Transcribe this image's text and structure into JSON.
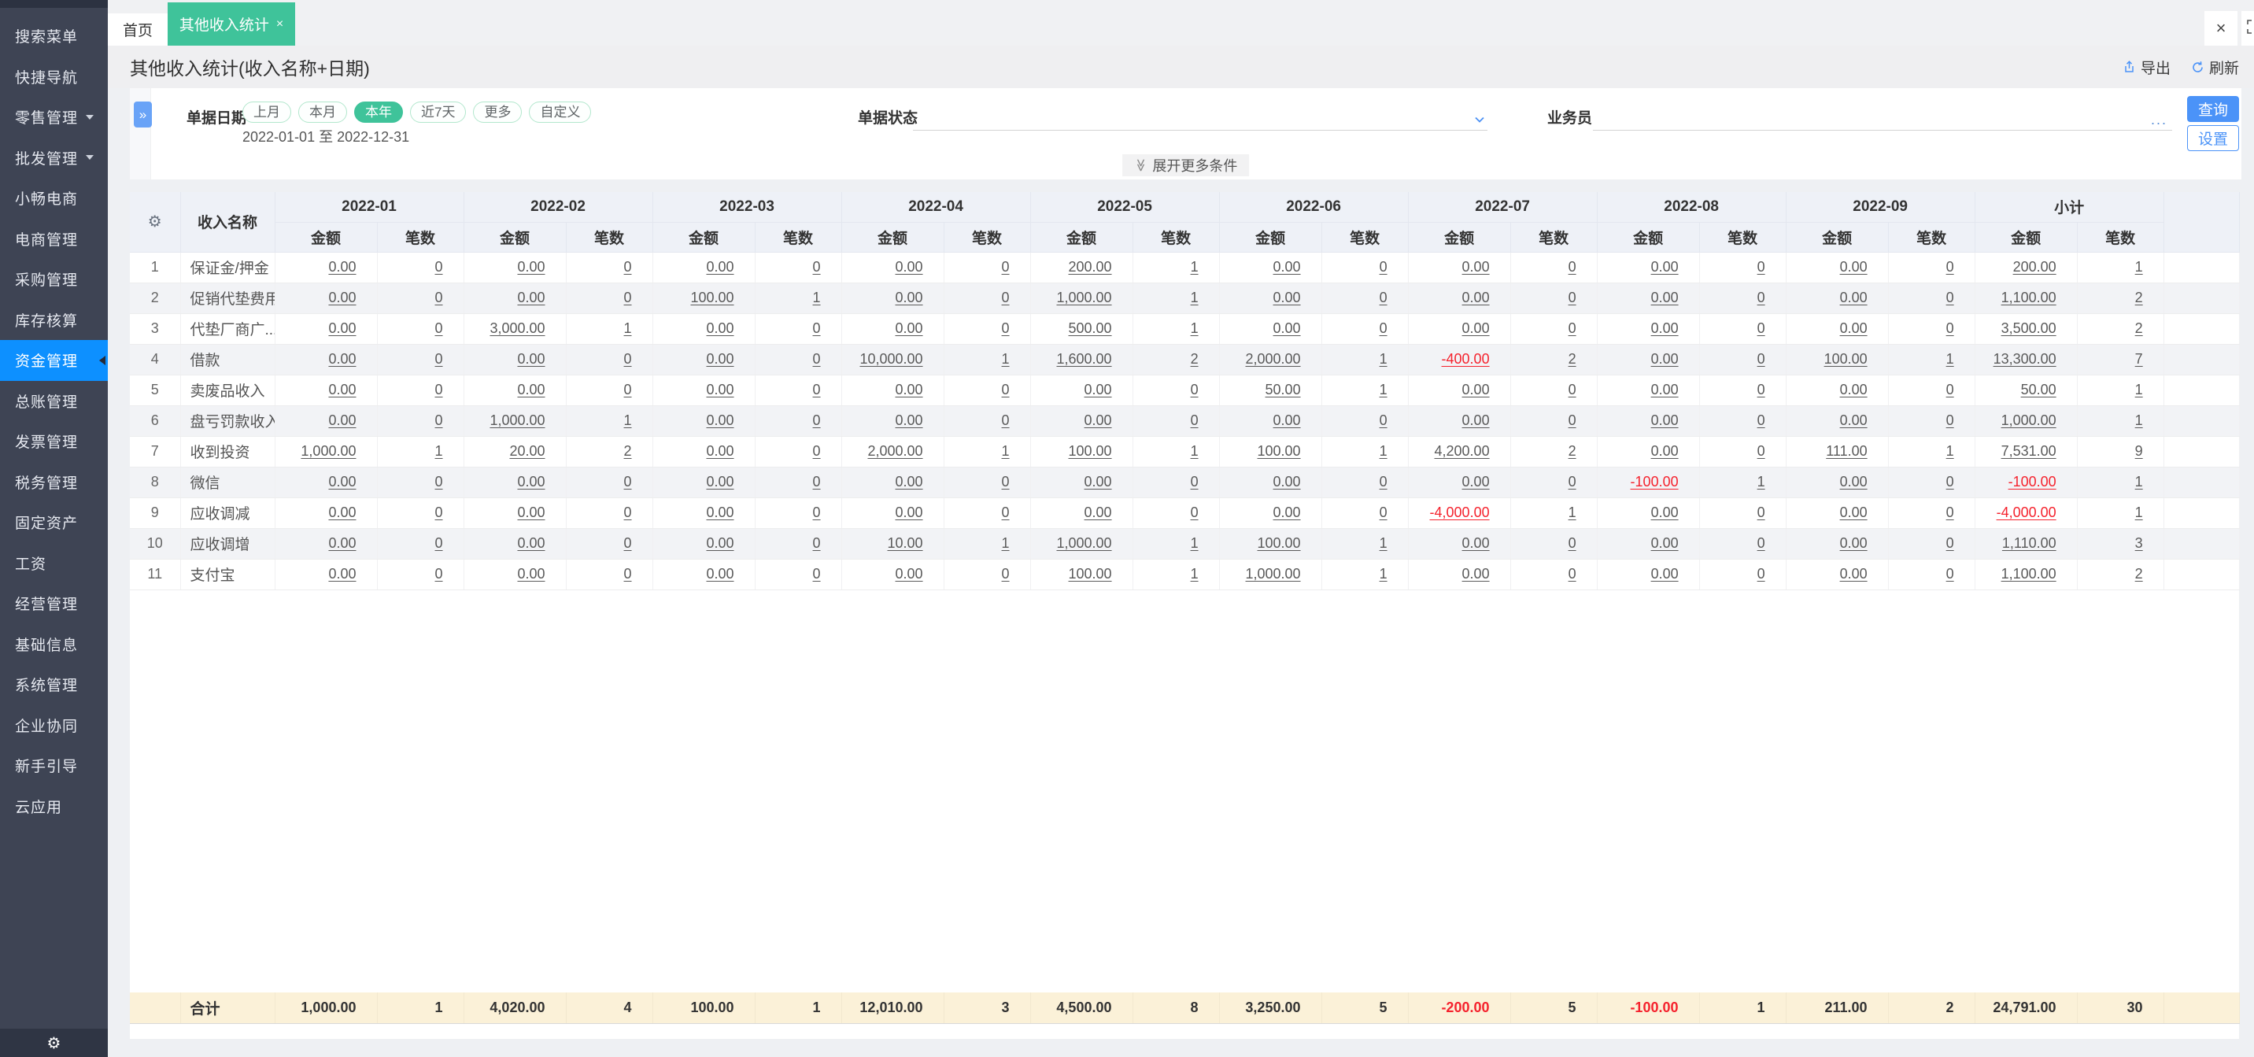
{
  "sidebar": {
    "items": [
      {
        "label": "搜索菜单"
      },
      {
        "label": "快捷导航"
      },
      {
        "label": "零售管理",
        "arrow": true
      },
      {
        "label": "批发管理",
        "arrow": true
      },
      {
        "label": "小畅电商"
      },
      {
        "label": "电商管理"
      },
      {
        "label": "采购管理"
      },
      {
        "label": "库存核算"
      },
      {
        "label": "资金管理",
        "selected": true
      },
      {
        "label": "总账管理"
      },
      {
        "label": "发票管理"
      },
      {
        "label": "税务管理"
      },
      {
        "label": "固定资产"
      },
      {
        "label": "工资"
      },
      {
        "label": "经营管理"
      },
      {
        "label": "基础信息"
      },
      {
        "label": "系统管理"
      },
      {
        "label": "企业协同"
      },
      {
        "label": "新手引导"
      },
      {
        "label": "云应用"
      }
    ],
    "footer_icon": "gear"
  },
  "tabs": {
    "home": "首页",
    "active": "其他收入统计",
    "active_close": "×",
    "window_close": "×"
  },
  "page": {
    "title": "其他收入统计(收入名称+日期)",
    "export_label": "导出",
    "refresh_label": "刷新"
  },
  "filters": {
    "date_label": "单据日期",
    "date_chips": [
      "上月",
      "本月",
      "本年",
      "近7天",
      "更多",
      "自定义"
    ],
    "date_chip_selected": "本年",
    "date_range": "2022-01-01 至 2022-12-31",
    "status_label": "单据状态",
    "salesman_label": "业务员",
    "salesman_ellipsis": "...",
    "expand_more": "展开更多条件",
    "expand_more_icon": "≫",
    "query_label": "查询",
    "settings_label": "设置",
    "collapse_icon": "»"
  },
  "table": {
    "name_header": "收入名称",
    "amount_header": "金额",
    "count_header": "笔数",
    "months": [
      "2022-01",
      "2022-02",
      "2022-03",
      "2022-04",
      "2022-05",
      "2022-06",
      "2022-07",
      "2022-08",
      "2022-09",
      "小计"
    ],
    "rows": [
      {
        "index": "1",
        "name": "保证金/押金",
        "cells": [
          [
            "0.00",
            "0"
          ],
          [
            "0.00",
            "0"
          ],
          [
            "0.00",
            "0"
          ],
          [
            "0.00",
            "0"
          ],
          [
            "200.00",
            "1"
          ],
          [
            "0.00",
            "0"
          ],
          [
            "0.00",
            "0"
          ],
          [
            "0.00",
            "0"
          ],
          [
            "0.00",
            "0"
          ],
          [
            "200.00",
            "1"
          ]
        ]
      },
      {
        "index": "2",
        "name": "促销代垫费用",
        "cells": [
          [
            "0.00",
            "0"
          ],
          [
            "0.00",
            "0"
          ],
          [
            "100.00",
            "1"
          ],
          [
            "0.00",
            "0"
          ],
          [
            "1,000.00",
            "1"
          ],
          [
            "0.00",
            "0"
          ],
          [
            "0.00",
            "0"
          ],
          [
            "0.00",
            "0"
          ],
          [
            "0.00",
            "0"
          ],
          [
            "1,100.00",
            "2"
          ]
        ]
      },
      {
        "index": "3",
        "name": "代垫厂商广...",
        "cells": [
          [
            "0.00",
            "0"
          ],
          [
            "3,000.00",
            "1"
          ],
          [
            "0.00",
            "0"
          ],
          [
            "0.00",
            "0"
          ],
          [
            "500.00",
            "1"
          ],
          [
            "0.00",
            "0"
          ],
          [
            "0.00",
            "0"
          ],
          [
            "0.00",
            "0"
          ],
          [
            "0.00",
            "0"
          ],
          [
            "3,500.00",
            "2"
          ]
        ]
      },
      {
        "index": "4",
        "name": "借款",
        "cells": [
          [
            "0.00",
            "0"
          ],
          [
            "0.00",
            "0"
          ],
          [
            "0.00",
            "0"
          ],
          [
            "10,000.00",
            "1"
          ],
          [
            "1,600.00",
            "2"
          ],
          [
            "2,000.00",
            "1"
          ],
          [
            "-400.00",
            "2"
          ],
          [
            "0.00",
            "0"
          ],
          [
            "100.00",
            "1"
          ],
          [
            "13,300.00",
            "7"
          ]
        ]
      },
      {
        "index": "5",
        "name": "卖废品收入",
        "cells": [
          [
            "0.00",
            "0"
          ],
          [
            "0.00",
            "0"
          ],
          [
            "0.00",
            "0"
          ],
          [
            "0.00",
            "0"
          ],
          [
            "0.00",
            "0"
          ],
          [
            "50.00",
            "1"
          ],
          [
            "0.00",
            "0"
          ],
          [
            "0.00",
            "0"
          ],
          [
            "0.00",
            "0"
          ],
          [
            "50.00",
            "1"
          ]
        ]
      },
      {
        "index": "6",
        "name": "盘亏罚款收入",
        "cells": [
          [
            "0.00",
            "0"
          ],
          [
            "1,000.00",
            "1"
          ],
          [
            "0.00",
            "0"
          ],
          [
            "0.00",
            "0"
          ],
          [
            "0.00",
            "0"
          ],
          [
            "0.00",
            "0"
          ],
          [
            "0.00",
            "0"
          ],
          [
            "0.00",
            "0"
          ],
          [
            "0.00",
            "0"
          ],
          [
            "1,000.00",
            "1"
          ]
        ]
      },
      {
        "index": "7",
        "name": "收到投资",
        "cells": [
          [
            "1,000.00",
            "1"
          ],
          [
            "20.00",
            "2"
          ],
          [
            "0.00",
            "0"
          ],
          [
            "2,000.00",
            "1"
          ],
          [
            "100.00",
            "1"
          ],
          [
            "100.00",
            "1"
          ],
          [
            "4,200.00",
            "2"
          ],
          [
            "0.00",
            "0"
          ],
          [
            "111.00",
            "1"
          ],
          [
            "7,531.00",
            "9"
          ]
        ]
      },
      {
        "index": "8",
        "name": "微信",
        "cells": [
          [
            "0.00",
            "0"
          ],
          [
            "0.00",
            "0"
          ],
          [
            "0.00",
            "0"
          ],
          [
            "0.00",
            "0"
          ],
          [
            "0.00",
            "0"
          ],
          [
            "0.00",
            "0"
          ],
          [
            "0.00",
            "0"
          ],
          [
            "-100.00",
            "1"
          ],
          [
            "0.00",
            "0"
          ],
          [
            "-100.00",
            "1"
          ]
        ]
      },
      {
        "index": "9",
        "name": "应收调减",
        "cells": [
          [
            "0.00",
            "0"
          ],
          [
            "0.00",
            "0"
          ],
          [
            "0.00",
            "0"
          ],
          [
            "0.00",
            "0"
          ],
          [
            "0.00",
            "0"
          ],
          [
            "0.00",
            "0"
          ],
          [
            "-4,000.00",
            "1"
          ],
          [
            "0.00",
            "0"
          ],
          [
            "0.00",
            "0"
          ],
          [
            "-4,000.00",
            "1"
          ]
        ]
      },
      {
        "index": "10",
        "name": "应收调增",
        "cells": [
          [
            "0.00",
            "0"
          ],
          [
            "0.00",
            "0"
          ],
          [
            "0.00",
            "0"
          ],
          [
            "10.00",
            "1"
          ],
          [
            "1,000.00",
            "1"
          ],
          [
            "100.00",
            "1"
          ],
          [
            "0.00",
            "0"
          ],
          [
            "0.00",
            "0"
          ],
          [
            "0.00",
            "0"
          ],
          [
            "1,110.00",
            "3"
          ]
        ]
      },
      {
        "index": "11",
        "name": "支付宝",
        "cells": [
          [
            "0.00",
            "0"
          ],
          [
            "0.00",
            "0"
          ],
          [
            "0.00",
            "0"
          ],
          [
            "0.00",
            "0"
          ],
          [
            "100.00",
            "1"
          ],
          [
            "1,000.00",
            "1"
          ],
          [
            "0.00",
            "0"
          ],
          [
            "0.00",
            "0"
          ],
          [
            "0.00",
            "0"
          ],
          [
            "1,100.00",
            "2"
          ]
        ]
      }
    ],
    "total_label": "合计",
    "totals": [
      [
        "1,000.00",
        "1"
      ],
      [
        "4,020.00",
        "4"
      ],
      [
        "100.00",
        "1"
      ],
      [
        "12,010.00",
        "3"
      ],
      [
        "4,500.00",
        "8"
      ],
      [
        "3,250.00",
        "5"
      ],
      [
        "-200.00",
        "5"
      ],
      [
        "-100.00",
        "1"
      ],
      [
        "211.00",
        "2"
      ],
      [
        "24,791.00",
        "30"
      ]
    ]
  },
  "colors": {
    "sidebar_bg": "#3e4454",
    "sidebar_selected": "#0d90ff",
    "tab_active_green": "#3fc39a",
    "accent_blue": "#4b93f8",
    "negative_red": "#f5222d",
    "total_row_bg": "#fbf1d8",
    "header_bg": "#eef1f7"
  }
}
